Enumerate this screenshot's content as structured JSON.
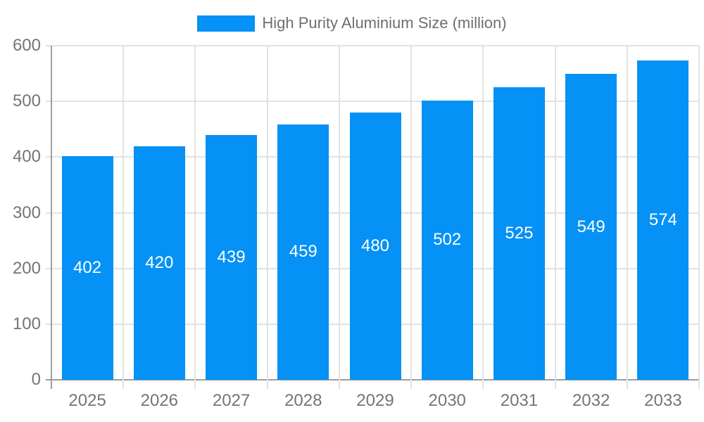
{
  "chart_data": {
    "type": "bar",
    "title": "",
    "legend": {
      "label": "High Purity Aluminium Size (million)",
      "position": "top"
    },
    "categories": [
      "2025",
      "2026",
      "2027",
      "2028",
      "2029",
      "2030",
      "2031",
      "2032",
      "2033"
    ],
    "series": [
      {
        "name": "High Purity Aluminium Size (million)",
        "values": [
          402,
          420,
          439,
          459,
          480,
          502,
          525,
          549,
          574
        ]
      }
    ],
    "value_labels_shown": true,
    "xlabel": "",
    "ylabel": "",
    "ylim": [
      0,
      600
    ],
    "yticks": [
      0,
      100,
      200,
      300,
      400,
      500,
      600
    ],
    "grid": true,
    "colors": {
      "bar": "#0591F5",
      "value_label": "#ffffff",
      "axis_text": "#757575",
      "legend_text": "#6e6e6e",
      "gridline": "#e2e2e2",
      "axis_line": "#9e9e9e"
    }
  }
}
